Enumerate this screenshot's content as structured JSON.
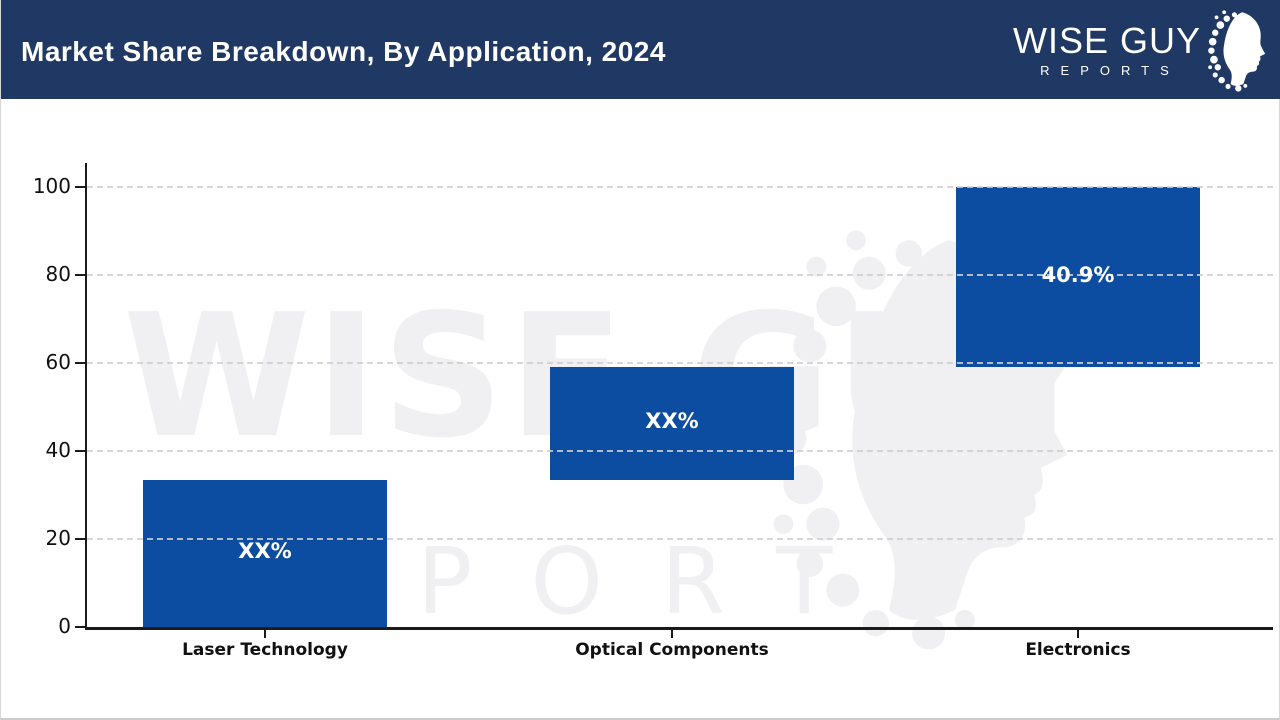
{
  "header": {
    "title": "Market Share Breakdown, By Application, 2024",
    "logo": {
      "line1": "WISE GUY",
      "line2": "REPORTS"
    }
  },
  "chart_data": {
    "type": "bar",
    "subtype": "floating-waterfall",
    "title": "Market Share Breakdown, By Application, 2024",
    "categories": [
      "Laser Technology",
      "Optical Components",
      "Electronics"
    ],
    "segments": [
      {
        "category": "Laser Technology",
        "start": 0,
        "end": 33.5,
        "label": "XX%"
      },
      {
        "category": "Optical Components",
        "start": 33.5,
        "end": 59.1,
        "label": "XX%"
      },
      {
        "category": "Electronics",
        "start": 59.1,
        "end": 100,
        "label": "40.9%"
      }
    ],
    "yticks": [
      0,
      20,
      40,
      60,
      80,
      100
    ],
    "ylim": [
      0,
      106
    ],
    "xlabel": "",
    "ylabel": "",
    "grid": "horizontal-dashed",
    "legend": "none",
    "bar_color": "#0d4da1",
    "bar_label_color": "#ffffff",
    "watermark": {
      "line1": "WISE GUY",
      "line2": "REPORTS"
    }
  },
  "colors": {
    "header_bg": "#1f3864",
    "header_text": "#ffffff",
    "bar": "#0d4da1",
    "grid": "#cfcfcf",
    "axis": "#1a1a1a",
    "watermark": "#f0f0f2"
  }
}
